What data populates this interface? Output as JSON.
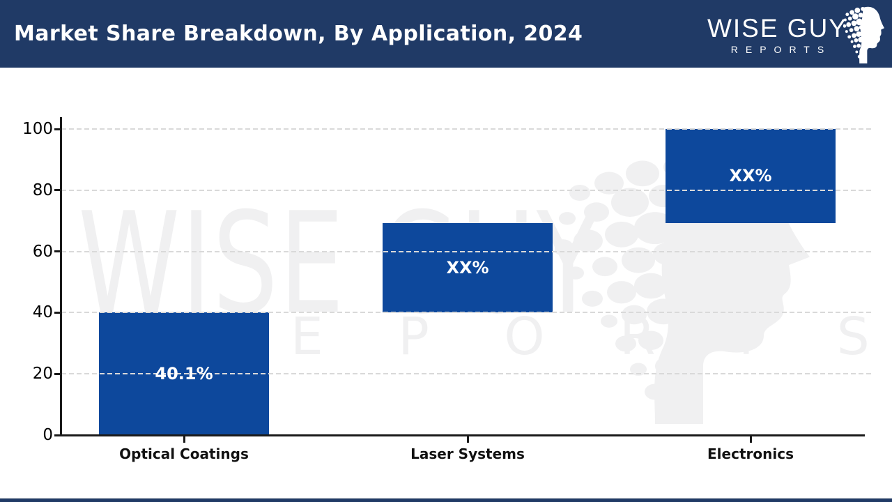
{
  "header": {
    "title": "Market Share Breakdown, By Application, 2024",
    "logo": {
      "line1": "WISE GUY",
      "line2": "REPORTS"
    },
    "bg_color": "#203a66"
  },
  "watermark": {
    "line1": "WISE GUY",
    "line2": "R E P O R T S"
  },
  "chart_data": {
    "type": "bar",
    "subtype": "floating-waterfall",
    "title": "Market Share Breakdown, By Application, 2024",
    "categories": [
      "Optical Coatings",
      "Laser Systems",
      "Electronics"
    ],
    "segments": [
      {
        "category": "Optical Coatings",
        "start": 0,
        "end": 40.1,
        "label": "40.1%"
      },
      {
        "category": "Laser Systems",
        "start": 40.1,
        "end": 69.3,
        "label": "XX%"
      },
      {
        "category": "Electronics",
        "start": 69.3,
        "end": 100,
        "label": "XX%"
      }
    ],
    "xlabel": "",
    "ylabel": "",
    "ylim": [
      0,
      100
    ],
    "yticks": [
      0,
      20,
      40,
      60,
      80,
      100
    ],
    "grid": "horizontal-dashed",
    "gridline_color": "#d9d9d9",
    "bar_color": "#0d489c",
    "bar_label_color": "#ffffff",
    "legend": "none"
  }
}
